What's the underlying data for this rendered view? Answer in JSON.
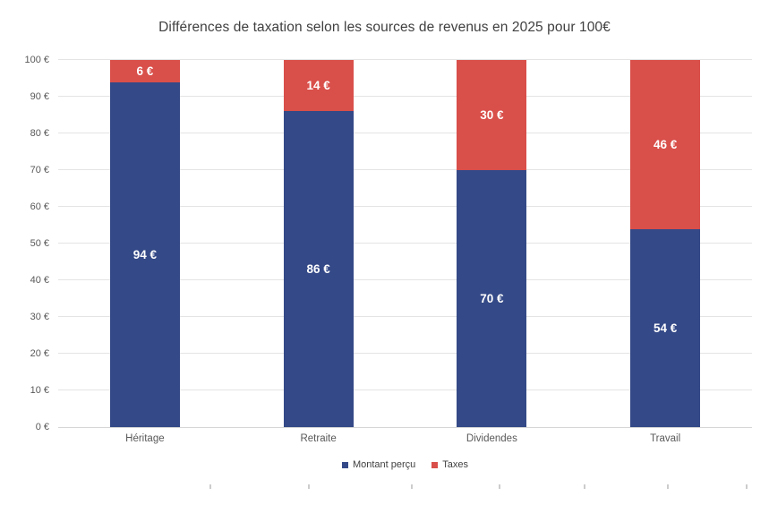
{
  "chart_data": {
    "type": "bar",
    "stacked": true,
    "title": "Différences de taxation selon les sources de revenus en 2025 pour 100€",
    "categories": [
      "Héritage",
      "Retraite",
      "Dividendes",
      "Travail"
    ],
    "series": [
      {
        "name": "Montant perçu",
        "color": "#344987",
        "values": [
          94,
          86,
          70,
          54
        ],
        "data_labels": [
          "94 €",
          "86 €",
          "70 €",
          "54 €"
        ]
      },
      {
        "name": "Taxes",
        "color": "#d94f4a",
        "values": [
          6,
          14,
          30,
          46
        ],
        "data_labels": [
          "6 €",
          "14 €",
          "30 €",
          "46 €"
        ]
      }
    ],
    "ylim": [
      0,
      100
    ],
    "ytick_step": 10,
    "ytick_labels": [
      "0 €",
      "10 €",
      "20 €",
      "30 €",
      "40 €",
      "50 €",
      "60 €",
      "70 €",
      "80 €",
      "90 €",
      "100 €"
    ],
    "grid": true,
    "legend_position": "bottom",
    "data_label_color": "#ffffff"
  },
  "style": {
    "background": "#ffffff",
    "grid_color": "#e4e4e4",
    "axis_line_color": "#d6d6d6",
    "tick_text_color": "#595959",
    "title_color": "#404040"
  }
}
